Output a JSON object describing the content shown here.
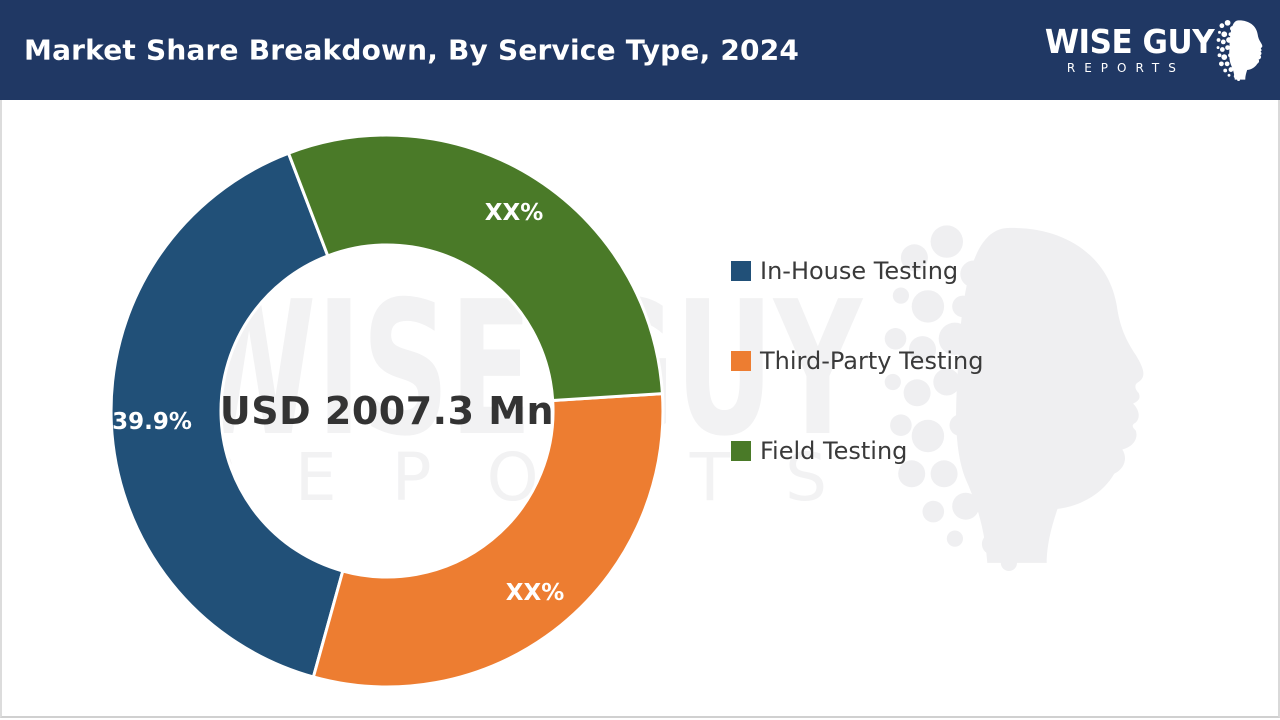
{
  "header": {
    "title": "Market Share Breakdown, By Service Type, 2024",
    "logo": {
      "line1": "WISE GUY",
      "line2": "REPORTS"
    }
  },
  "watermark": {
    "line1": "WISE GUY",
    "line2": "REPORTS"
  },
  "chart_data": {
    "type": "pie",
    "donut": true,
    "title": "Market Share Breakdown, By Service Type, 2024",
    "center_label": "USD 2007.3 Mn",
    "start_angle_deg": 110.9,
    "direction": "counterclockwise",
    "legend_position": "right",
    "series": [
      {
        "name": "In-House Testing",
        "value_pct": 39.9,
        "label": "39.9%",
        "color": "#215078"
      },
      {
        "name": "Third-Party Testing",
        "value_pct": 30.3,
        "label": "XX%",
        "color": "#ED7D31"
      },
      {
        "name": "Field Testing",
        "value_pct": 29.8,
        "label": "XX%",
        "color": "#4A7A28"
      }
    ]
  },
  "colors": {
    "header_bg": "#203864",
    "center_text": "#333333",
    "legend_text": "#3A3A3A",
    "watermark": "#F2F2F3",
    "watermark_face": "#EFEFF1",
    "separator": "#FFFFFF"
  }
}
